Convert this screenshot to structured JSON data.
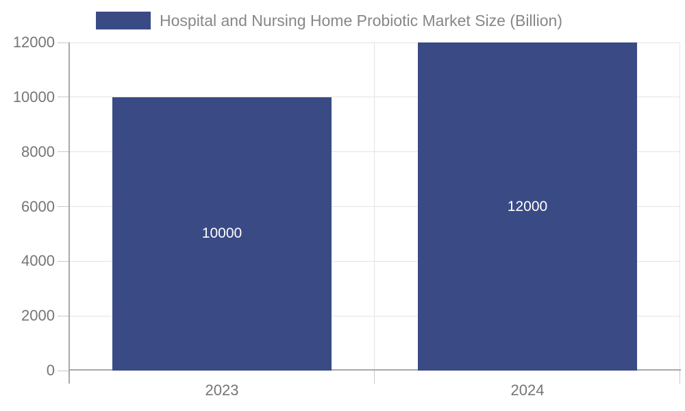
{
  "legend": {
    "label": "Hospital and Nursing Home Probiotic Market Size (Billion)"
  },
  "chart_data": {
    "type": "bar",
    "title": "Hospital and Nursing Home Probiotic Market Size (Billion)",
    "categories": [
      "2023",
      "2024"
    ],
    "series": [
      {
        "name": "Hospital and Nursing Home Probiotic Market Size (Billion)",
        "values": [
          10000,
          12000
        ]
      }
    ],
    "bar_value_labels": [
      "10000",
      "12000"
    ],
    "xlabel": "",
    "ylabel": "",
    "ylim": [
      0,
      12000
    ],
    "y_ticks": [
      0,
      2000,
      4000,
      6000,
      8000,
      10000,
      12000
    ],
    "grid": true,
    "legend_position": "top-left",
    "colors": {
      "bar": "#3a4a85",
      "grid": "#e3e3e3",
      "axis": "#a8a8a8",
      "tick": "#c8c8c8",
      "axis_label_text": "#757575",
      "legend_text": "#878787",
      "bar_label_text": "#ffffff"
    }
  }
}
